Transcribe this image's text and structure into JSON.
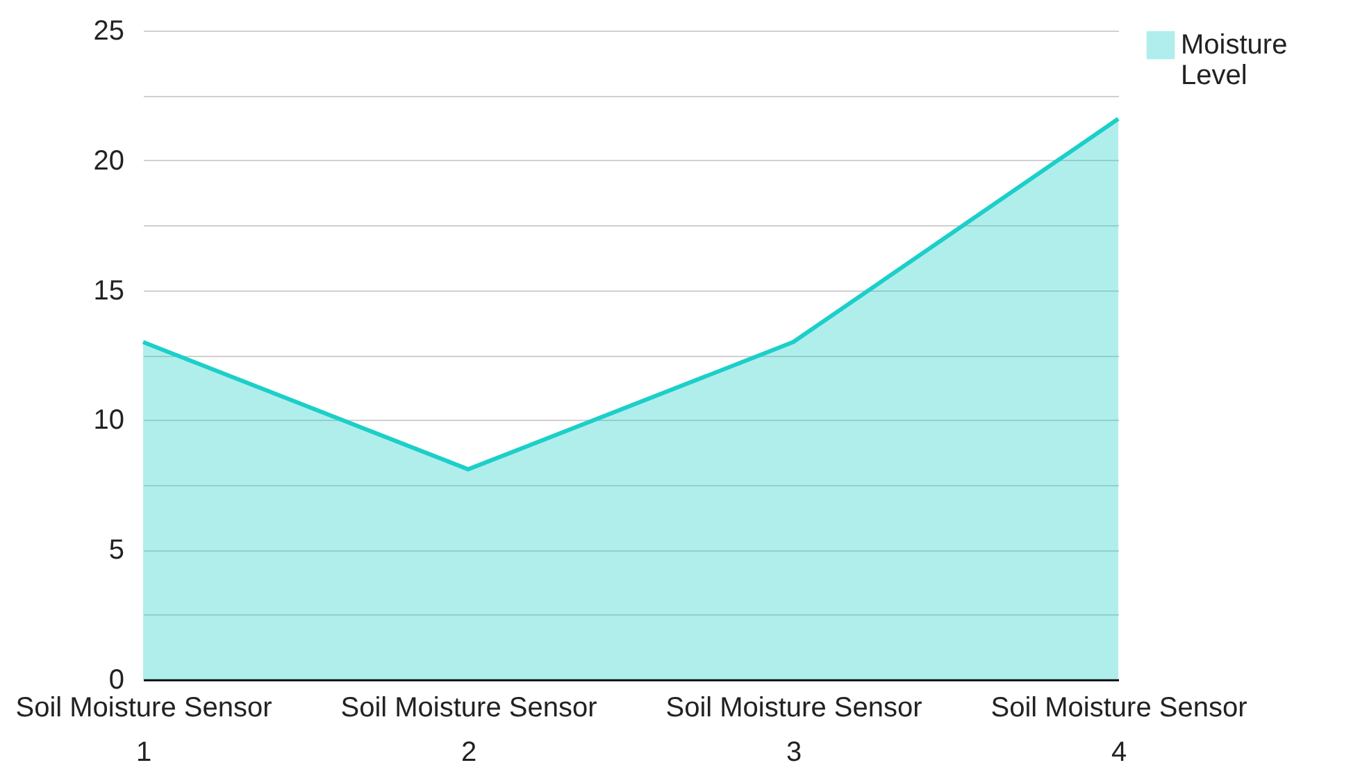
{
  "chart_data": {
    "type": "area",
    "categories": [
      "Soil Moisture Sensor 1",
      "Soil Moisture Sensor 2",
      "Soil Moisture Sensor 3",
      "Soil Moisture Sensor 4"
    ],
    "series": [
      {
        "name": "Moisture Level",
        "color": "#1ccfc9",
        "values": [
          13,
          8.1,
          13,
          21.6
        ]
      }
    ],
    "ylim": [
      0,
      25
    ],
    "yticks": [
      0,
      {
        "value": 2.5,
        "label": null
      },
      5,
      {
        "value": 7.5,
        "label": null
      },
      10,
      {
        "value": 12.5,
        "label": null
      },
      15,
      {
        "value": 17.5,
        "label": null
      },
      20,
      {
        "value": 22.5,
        "label": null
      },
      25
    ],
    "grid": "y",
    "legend": "top right",
    "marker": "none",
    "line_style": "solid"
  }
}
